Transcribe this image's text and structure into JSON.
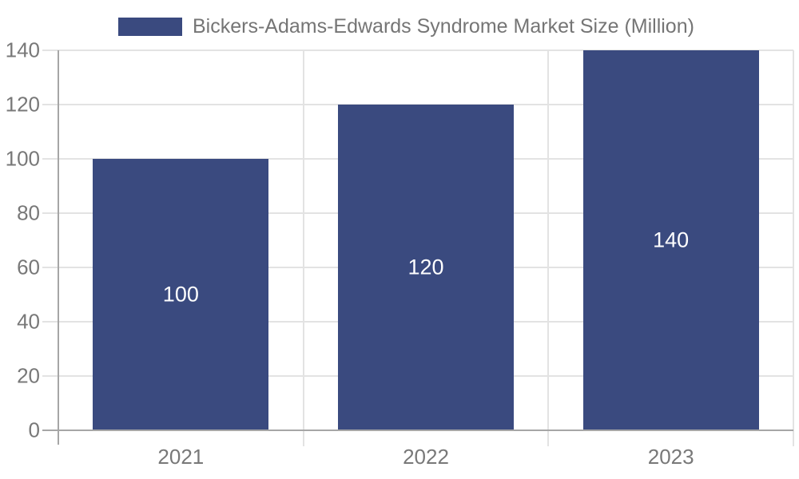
{
  "legend": {
    "series_label": "Bickers-Adams-Edwards Syndrome Market Size (Million)"
  },
  "chart_data": {
    "type": "bar",
    "title": "",
    "xlabel": "",
    "ylabel": "",
    "categories": [
      "2021",
      "2022",
      "2023"
    ],
    "values": [
      100,
      120,
      140
    ],
    "series_name": "Bickers-Adams-Edwards Syndrome Market Size (Million)",
    "value_labels": [
      "100",
      "120",
      "140"
    ],
    "ylim": [
      0,
      140
    ],
    "yticks": [
      0,
      20,
      40,
      60,
      80,
      100,
      120,
      140
    ],
    "grid": true,
    "legend_position": "top",
    "bar_color": "#3a4a7f",
    "value_label_color": "#ffffff",
    "tick_label_color": "#787878",
    "axis_color": "#a6a6a6",
    "gridline_color": "#e3e3e3",
    "background_color": "#ffffff"
  }
}
